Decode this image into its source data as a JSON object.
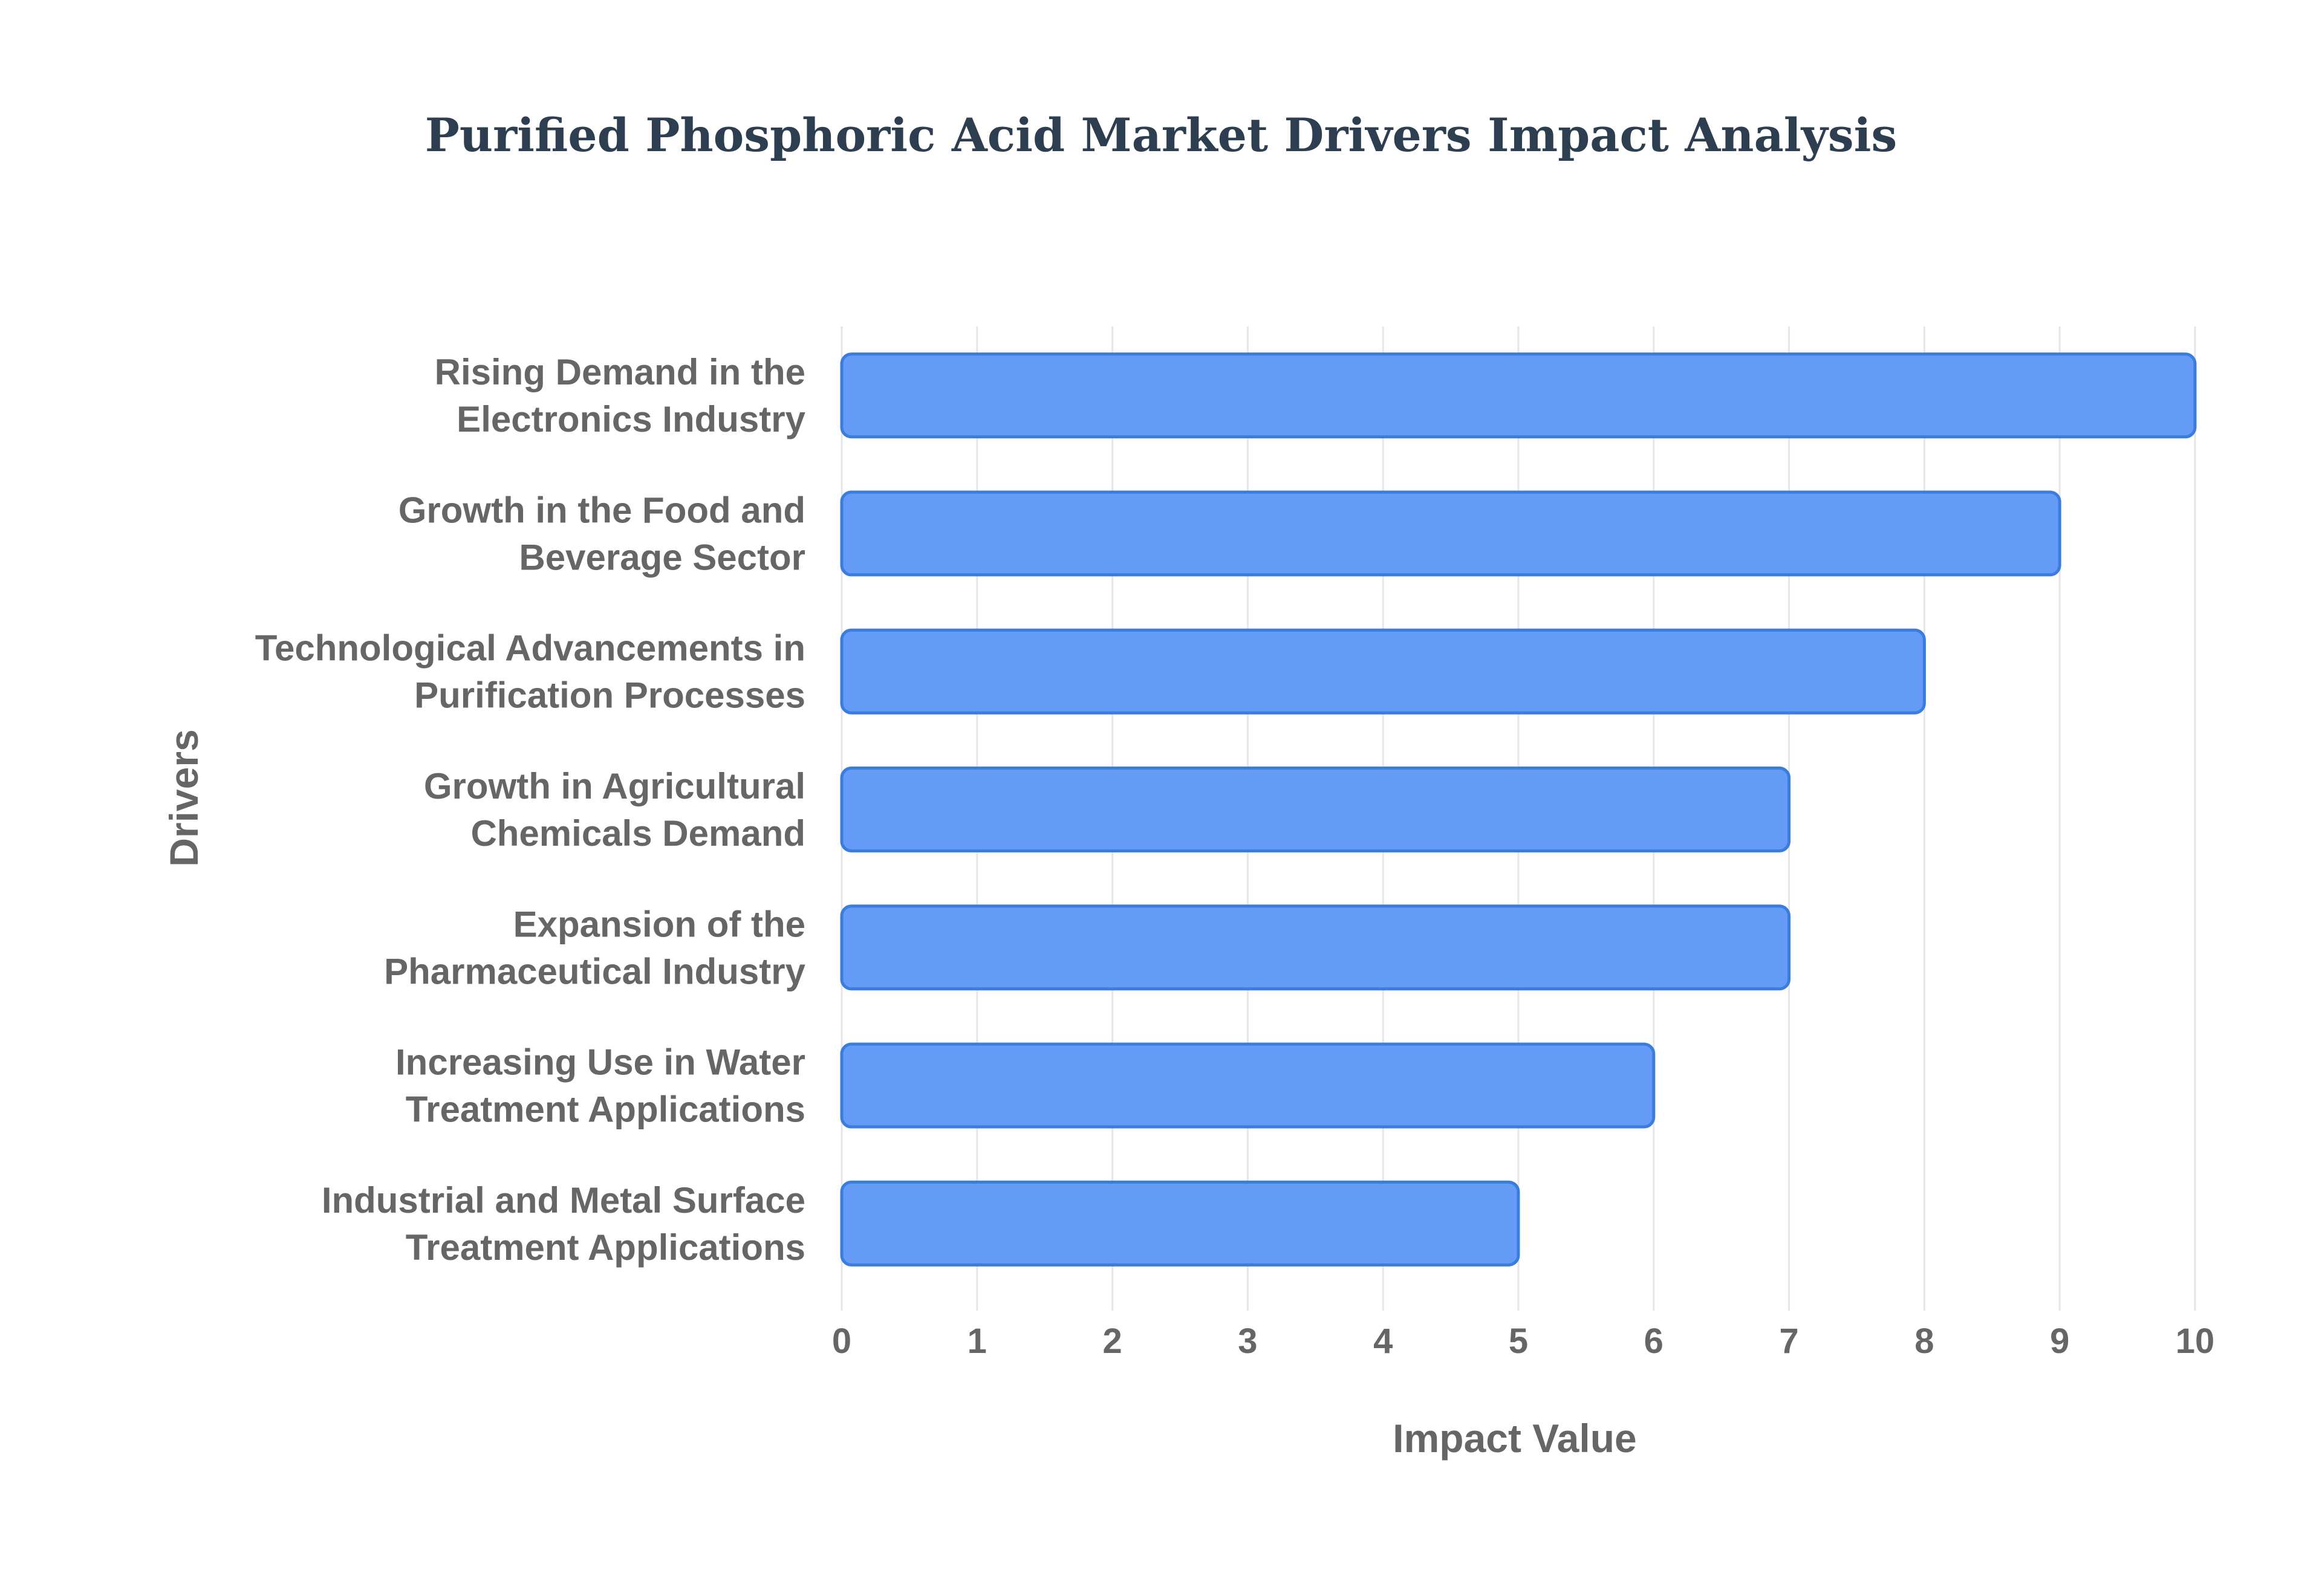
{
  "chart_data": {
    "type": "bar",
    "orientation": "horizontal",
    "title": "Purified Phosphoric Acid Market Drivers Impact Analysis",
    "xlabel": "Impact Value",
    "ylabel": "Drivers",
    "xlim": [
      0,
      10
    ],
    "xticks": [
      "0",
      "1",
      "2",
      "3",
      "4",
      "5",
      "6",
      "7",
      "8",
      "9",
      "10"
    ],
    "grid": true,
    "legend": "none",
    "bar_color": "#6199f7",
    "bar_border_color": "#3b7ddd",
    "categories": [
      [
        "Rising Demand in the",
        "Electronics Industry"
      ],
      [
        "Growth in the Food and",
        "Beverage Sector"
      ],
      [
        "Technological Advancements in",
        "Purification Processes"
      ],
      [
        "Growth in Agricultural",
        "Chemicals Demand"
      ],
      [
        "Expansion of the",
        "Pharmaceutical Industry"
      ],
      [
        "Increasing Use in Water",
        "Treatment Applications"
      ],
      [
        "Industrial and Metal Surface",
        "Treatment Applications"
      ]
    ],
    "values": [
      10,
      9,
      8,
      7,
      7,
      6,
      5
    ]
  }
}
